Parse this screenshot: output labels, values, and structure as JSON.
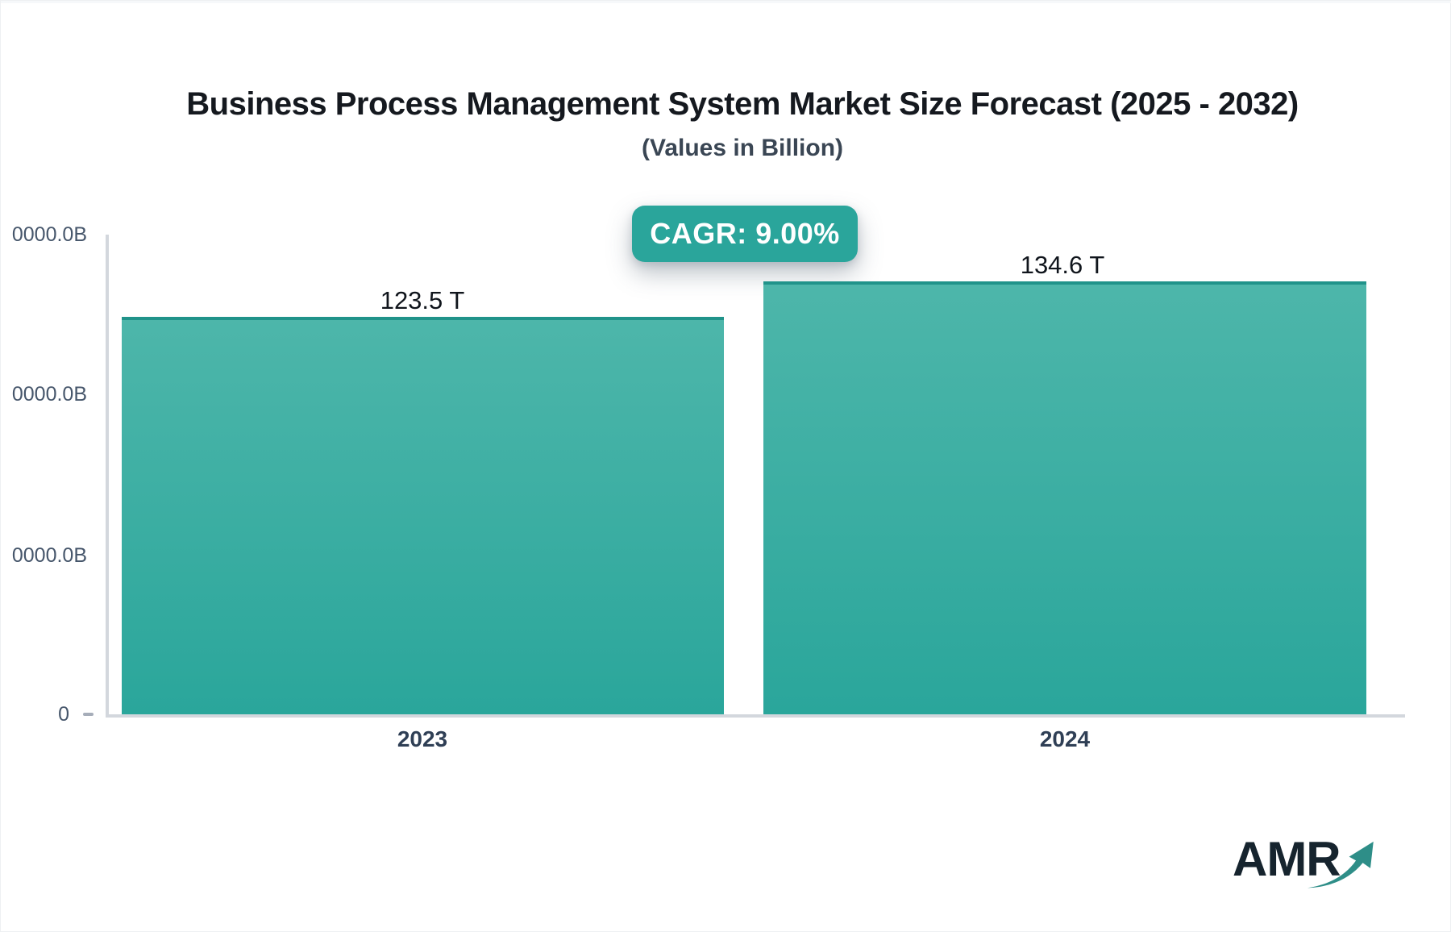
{
  "chart_data": {
    "type": "bar",
    "title": "Business Process Management System Market Size Forecast (2025 - 2032)",
    "subtitle": "(Values in Billion)",
    "cagr_label": "CAGR: 9.00%",
    "categories": [
      "2023",
      "2024"
    ],
    "values": [
      123.5,
      134.6
    ],
    "value_labels": [
      "123.5 T",
      "134.6 T"
    ],
    "unit": "T",
    "y_axis_ticks": [
      "0000.0B",
      "0000.0B",
      "0000.0B",
      "0"
    ],
    "grid": false,
    "legend": "none",
    "colors": {
      "bar_gradient_top": "#4db6aa",
      "bar_gradient_bottom": "#2aa69b",
      "bar_top_border": "#20938a",
      "badge_background": "#2aa59b",
      "badge_text": "#ffffff",
      "axis_line": "#d3d7dd"
    }
  },
  "logo": {
    "text": "AMR",
    "arrow_color": "#2e8e88"
  }
}
